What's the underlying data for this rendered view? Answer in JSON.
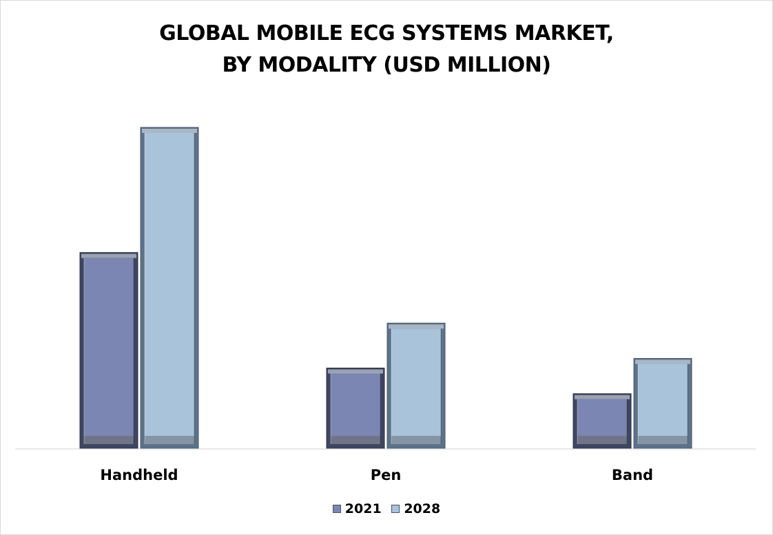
{
  "chart_data": {
    "type": "bar",
    "title": "GLOBAL MOBILE ECG SYSTEMS MARKET, BY MODALITY (USD MILLION)",
    "title_lines": [
      "GLOBAL MOBILE ECG SYSTEMS MARKET,",
      "BY MODALITY (USD MILLION)"
    ],
    "categories": [
      "Handheld",
      "Pen",
      "Band"
    ],
    "series": [
      {
        "name": "2021",
        "values": [
          61,
          25,
          17
        ],
        "color": "#7b86b2"
      },
      {
        "name": "2028",
        "values": [
          100,
          39,
          28
        ],
        "color": "#a9c3db"
      }
    ],
    "xlabel": "",
    "ylabel": "",
    "ylim": [
      0,
      100
    ],
    "grid": false,
    "legend": "bottom-center"
  }
}
